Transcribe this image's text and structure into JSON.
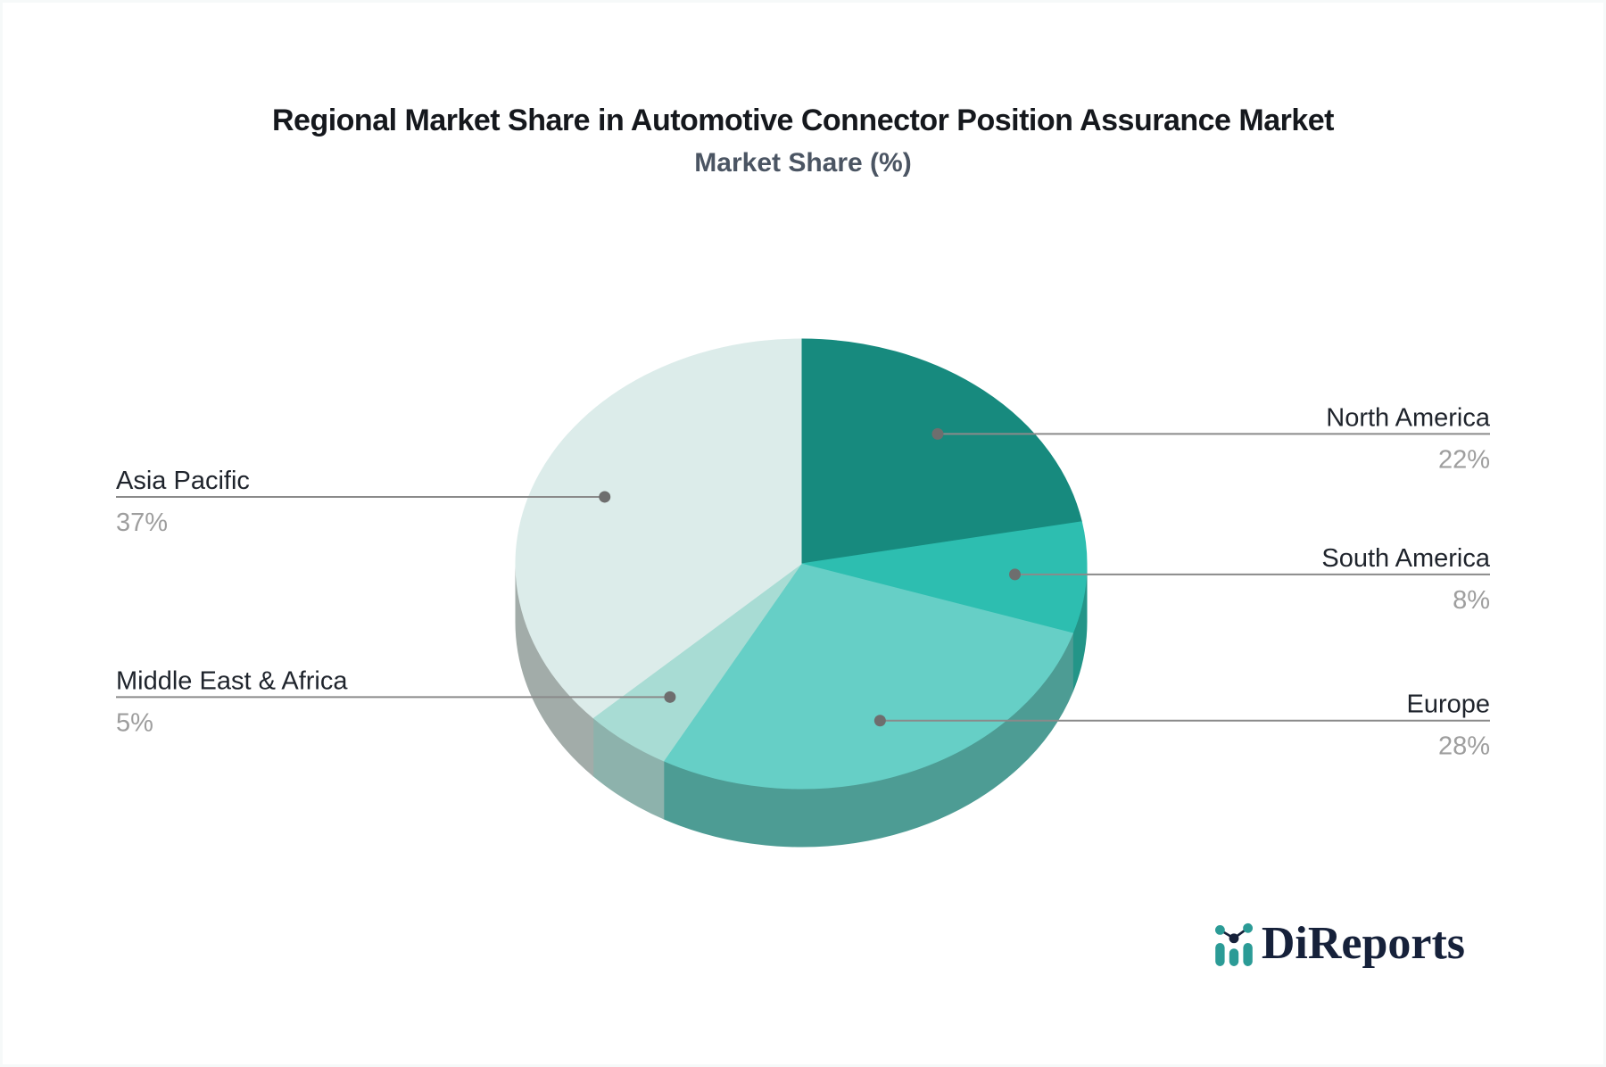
{
  "chart_data": {
    "type": "pie",
    "title": "Regional Market Share in Automotive Connector Position Assurance Market",
    "subtitle": "Market Share (%)",
    "categories": [
      "North America",
      "South America",
      "Europe",
      "Middle East & Africa",
      "Asia Pacific"
    ],
    "values": [
      22,
      8,
      28,
      5,
      37
    ],
    "percent_labels": [
      "22%",
      "8%",
      "28%",
      "5%",
      "37%"
    ],
    "slice_colors": [
      "#178a7e",
      "#2dbeb0",
      "#66cfc6",
      "#a8dcd4",
      "#dcecea"
    ],
    "slice_side_colors": [
      "#10665d",
      "#239588",
      "#4d9c94",
      "#8db2ac",
      "#a2aca9"
    ],
    "start_position": "top",
    "direction": "clockwise",
    "effect": "3d-pie",
    "legend_position": "callout-labels",
    "leader_line_color": "#8a8a8a",
    "leader_dot_color": "#6e6e6e",
    "label_text_color": "#1f242c",
    "percent_text_color": "#9e9e9e",
    "background_color": "#ffffff"
  },
  "logo": {
    "text": "DiReports",
    "text_color": "#16213a",
    "icon_bar_color": "#2b9b96",
    "icon_line_color": "#16213a"
  }
}
